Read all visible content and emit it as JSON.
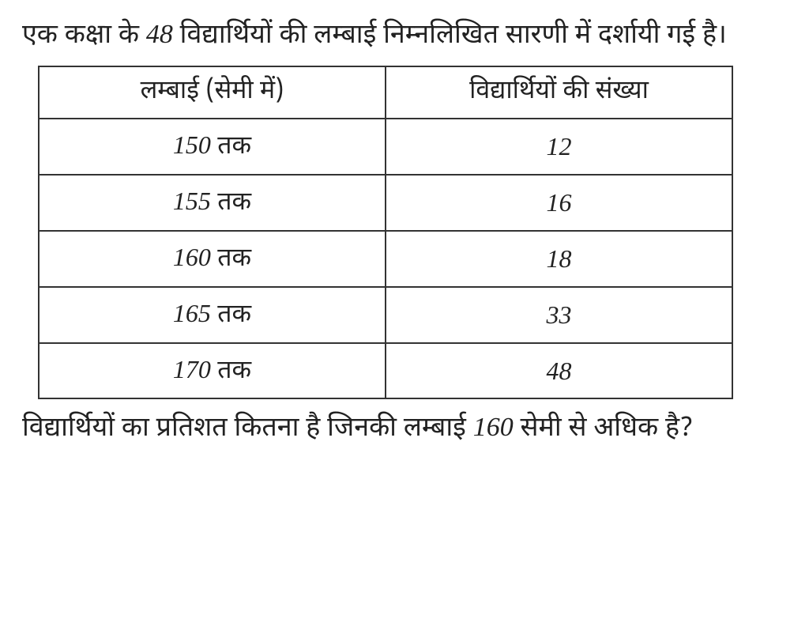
{
  "intro": {
    "before_num": "एक कक्षा के ",
    "num": "48",
    "after_num": " विद्यार्थियों की लम्बाई निम्नलिखित सारणी में दर्शायी गई है।"
  },
  "table": {
    "headers": [
      "लम्बाई (सेमी में)",
      "विद्यार्थियों की संख्या"
    ],
    "rows": [
      {
        "label_num": "150",
        "label_rest": " तक",
        "value": "12"
      },
      {
        "label_num": "155",
        "label_rest": " तक",
        "value": "16"
      },
      {
        "label_num": "160",
        "label_rest": " तक",
        "value": "18"
      },
      {
        "label_num": "165",
        "label_rest": " तक",
        "value": "33"
      },
      {
        "label_num": "170",
        "label_rest": " तक",
        "value": "48"
      }
    ],
    "border_color": "#333333",
    "background_color": "#ffffff",
    "header_fontsize": 32,
    "cell_fontsize": 32,
    "col_widths_pct": [
      50,
      50
    ]
  },
  "outro": {
    "before_num": "विद्यार्थियों का प्रतिशत कितना है जिनकी लम्बाई ",
    "num": "160",
    "after_num": " सेमी से अधिक है?"
  },
  "typography": {
    "body_font": "Noto Sans Devanagari",
    "numeric_font": "Georgia",
    "numeric_style": "italic",
    "intro_fontsize": 34,
    "outro_fontsize": 34,
    "text_color": "#222222"
  }
}
